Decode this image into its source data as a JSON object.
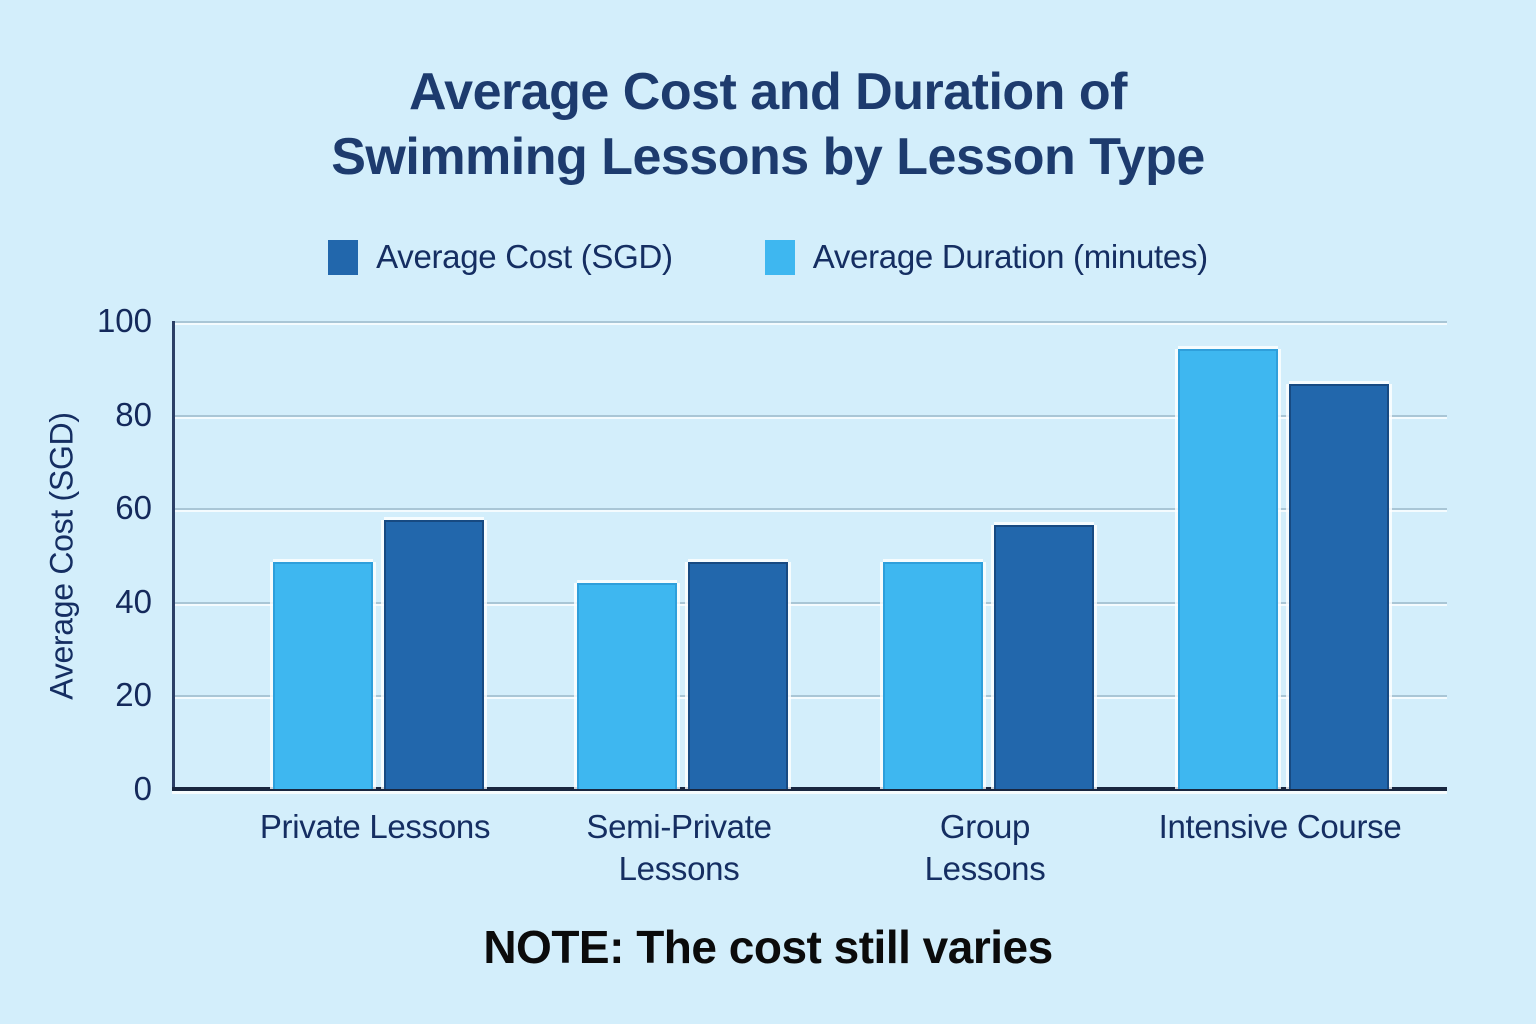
{
  "title_lines": [
    "Average Cost and Duration of",
    "Swimming Lessons by Lesson Type"
  ],
  "legend": {
    "items": [
      {
        "label": "Average Cost (SGD)",
        "color": "#2267ac"
      },
      {
        "label": "Average Duration (minutes)",
        "color": "#3eb7f0"
      }
    ]
  },
  "note_label": "NOTE: The cost still varies",
  "colors": {
    "background": "#d3eefb",
    "title_text": "#1d3b6e",
    "axis_text": "#152e62",
    "tick_text": "#14295b",
    "note_text": "#0b0b0b",
    "gridline": "#a9c6d6",
    "cost_bar": "#2267ac",
    "duration_bar": "#3eb7f0"
  },
  "chart_data": {
    "type": "bar",
    "title": "Average Cost and Duration of Swimming Lessons by Lesson Type",
    "categories": [
      "Private Lessons",
      "Semi-Private Lessons",
      "Group Lessons",
      "Intensive Course"
    ],
    "series": [
      {
        "key": "duration",
        "name": "Average Duration (minutes)",
        "color": "#3eb7f0",
        "edge": "#2f9fdb",
        "values": [
          48.5,
          44,
          48.5,
          94
        ]
      },
      {
        "key": "cost",
        "name": "Average Cost (SGD)",
        "color": "#2267ac",
        "edge": "#174a82",
        "values": [
          57.5,
          48.5,
          56.5,
          86.5
        ]
      }
    ],
    "xlabel": "",
    "ylabel": "Average Cost (SGD)",
    "ylim": [
      0,
      100
    ],
    "yticks": [
      0,
      20,
      40,
      60,
      80,
      100
    ],
    "grid": true,
    "legend_position": "top",
    "note": "NOTE: The cost still varies"
  }
}
